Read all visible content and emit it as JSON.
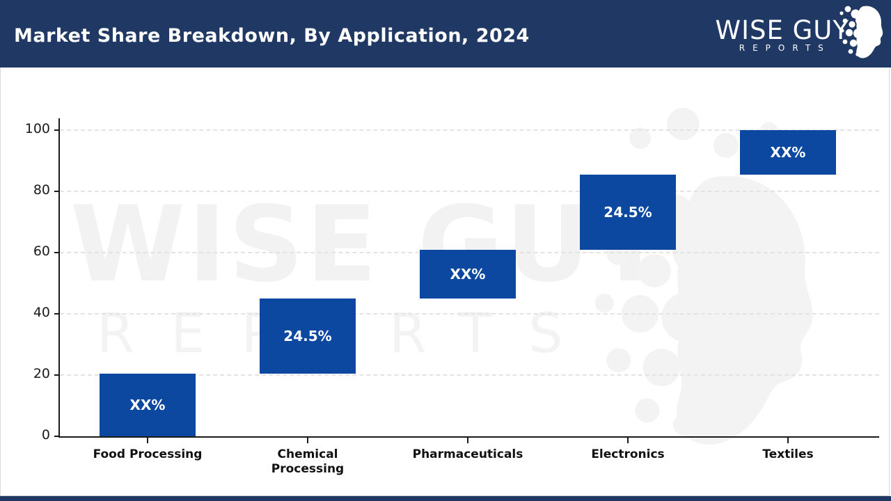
{
  "header": {
    "title": "Market Share Breakdown, By Application, 2024",
    "logo": {
      "line1": "WISE GUY",
      "line2": "REPORTS"
    }
  },
  "watermark": {
    "line1": "WISE GUY",
    "line2": "REPORTS"
  },
  "colors": {
    "header_bg": "#1f3864",
    "footer_bg": "#1f3864",
    "bar_blue": "#0c47a0",
    "watermark_gray": "#f2f2f2",
    "axis_black": "#1a1a1a",
    "grid_gray": "#e3e3e3"
  },
  "chart_data": {
    "type": "bar",
    "variant": "waterfall",
    "title": "Market Share Breakdown, By Application, 2024",
    "categories": [
      "Food Processing",
      "Chemical Processing",
      "Pharmaceuticals",
      "Electronics",
      "Textiles"
    ],
    "bars": [
      {
        "category": "Food Processing",
        "start": 0,
        "end": 20.5,
        "label": "XX%"
      },
      {
        "category": "Chemical Processing",
        "start": 20.5,
        "end": 45,
        "label": "24.5%"
      },
      {
        "category": "Pharmaceuticals",
        "start": 45,
        "end": 61,
        "label": "XX%"
      },
      {
        "category": "Electronics",
        "start": 61,
        "end": 85.5,
        "label": "24.5%"
      },
      {
        "category": "Textiles",
        "start": 85.5,
        "end": 100,
        "label": "XX%"
      }
    ],
    "xlabel": "",
    "ylabel": "",
    "ylim": [
      0,
      100
    ],
    "yticks": [
      0,
      20,
      40,
      60,
      80,
      100
    ],
    "grid": "horizontal-dashed",
    "legend": "none",
    "bar_color": "#0c47a0",
    "bar_label_color": "#ffffff"
  }
}
